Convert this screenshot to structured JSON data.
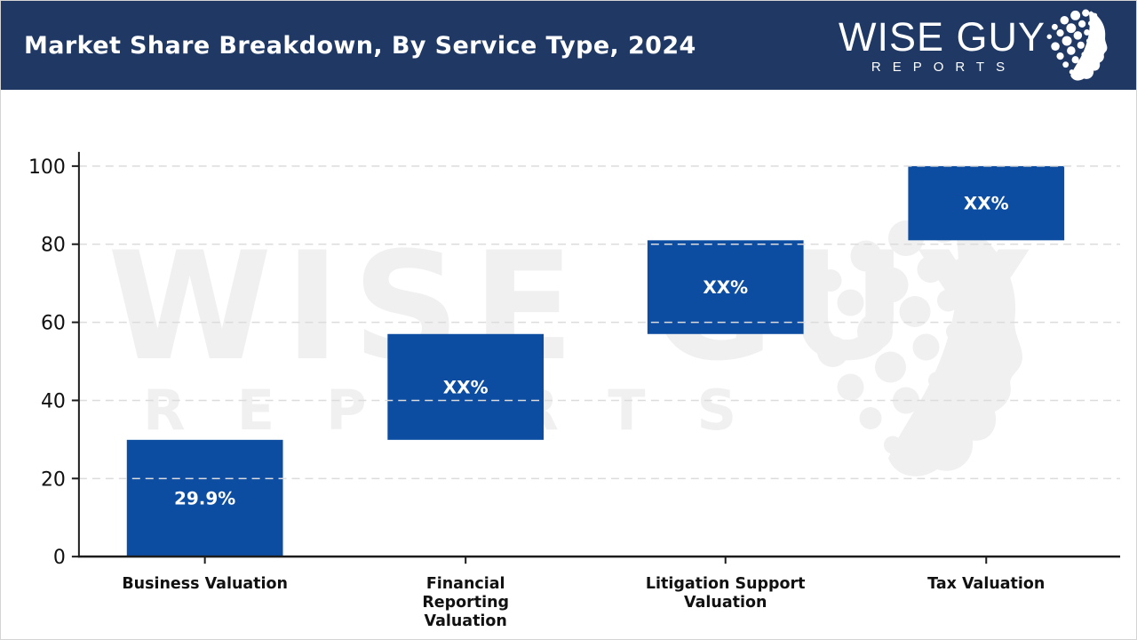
{
  "header": {
    "title": "Market Share Breakdown, By Service Type, 2024",
    "logo": {
      "line1": "WISE GUY",
      "line2": "REPORTS",
      "icon": "dotted-head-icon"
    }
  },
  "watermark": {
    "line1": "WISE GUY",
    "line2": "REPORTS",
    "icon": "dotted-head-icon"
  },
  "colors": {
    "header_bg": "#1f3864",
    "bar": "#0c4da2",
    "bar_label": "#ffffff",
    "axis": "#1c1c1c",
    "tick_label": "#111111",
    "grid": "#dcdcdc",
    "watermark": "#f0f0f0",
    "logo_text": "#ffffff"
  },
  "chart_data": {
    "type": "bar",
    "subtype": "waterfall",
    "title": "Market Share Breakdown, By Service Type, 2024",
    "categories": [
      "Business Valuation",
      "Financial Reporting Valuation",
      "Litigation Support Valuation",
      "Tax Valuation"
    ],
    "category_lines": [
      [
        "Business Valuation"
      ],
      [
        "Financial",
        "Reporting",
        "Valuation"
      ],
      [
        "Litigation Support",
        "Valuation"
      ],
      [
        "Tax Valuation"
      ]
    ],
    "segments": [
      {
        "category": "Business Valuation",
        "start": 0,
        "end": 29.9,
        "label": "29.9%"
      },
      {
        "category": "Financial Reporting Valuation",
        "start": 29.9,
        "end": 57,
        "label": "XX%"
      },
      {
        "category": "Litigation Support Valuation",
        "start": 57,
        "end": 81,
        "label": "XX%"
      },
      {
        "category": "Tax Valuation",
        "start": 81,
        "end": 100,
        "label": "XX%"
      }
    ],
    "yticks": [
      0,
      20,
      40,
      60,
      80,
      100
    ],
    "ylim": [
      0,
      104
    ],
    "xlabel": "",
    "ylabel": "",
    "grid": "dashed horizontal, drawn over bars",
    "legend": "none"
  }
}
